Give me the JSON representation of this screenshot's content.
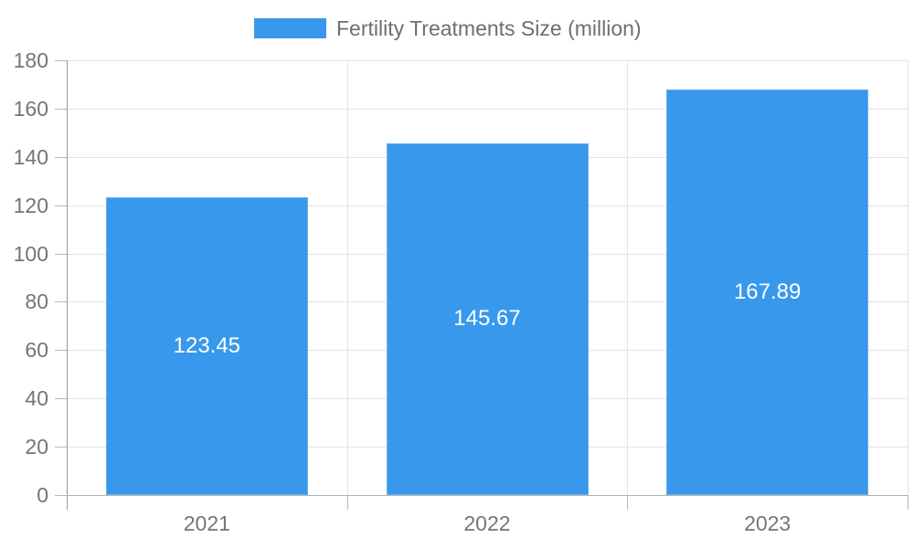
{
  "chart_data": {
    "type": "bar",
    "title": "Fertility Treatments Size (million)",
    "categories": [
      "2021",
      "2022",
      "2023"
    ],
    "values": [
      123.45,
      145.67,
      167.89
    ],
    "value_labels": [
      "123.45",
      "145.67",
      "167.89"
    ],
    "xlabel": "",
    "ylabel": "",
    "ylim": [
      0,
      180
    ],
    "yticks": [
      0,
      20,
      40,
      60,
      80,
      100,
      120,
      140,
      160,
      180
    ],
    "grid": true,
    "legend_position": "top",
    "colors": {
      "bar": "#3899ec",
      "bar_label": "#ffffff",
      "grid": "#e4e4e4",
      "x_axis": "#b3b3b3",
      "y_axis": "#9a9a9a",
      "tick": "#b8b8b8",
      "axis_text": "#757575",
      "legend_text": "#6e6e6e",
      "background": "#ffffff"
    }
  }
}
